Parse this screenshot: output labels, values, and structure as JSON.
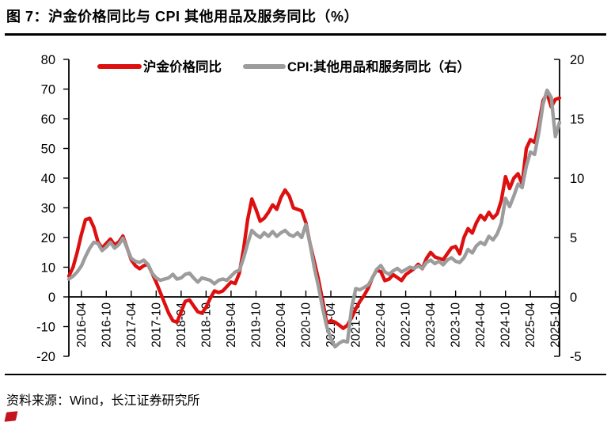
{
  "figure": {
    "title": "图 7：沪金价格同比与 CPI 其他用品及服务同比（%）",
    "source_note": "资料来源：Wind，长江证券研究所"
  },
  "colors": {
    "series_red": "#dd0f0f",
    "series_gray": "#9c9c9c",
    "axis": "#000000",
    "logo_red": "#c41420"
  },
  "chart_data": {
    "type": "line",
    "title": "沪金价格同比与 CPI 其他用品及服务同比（%）",
    "x_start": "2016-01",
    "x_end": "2025-11",
    "x_tick_labels": [
      "2016-04",
      "2016-10",
      "2017-04",
      "2017-10",
      "2018-04",
      "2018-10",
      "2019-04",
      "2019-10",
      "2020-04",
      "2020-10",
      "2021-04",
      "2021-10",
      "2022-04",
      "2022-10",
      "2023-04",
      "2023-10",
      "2024-04",
      "2024-10",
      "2025-04",
      "2025-10"
    ],
    "grid": false,
    "legend_position": "top",
    "left_axis": {
      "min": -20,
      "max": 80,
      "tick_values": [
        80,
        70,
        60,
        50,
        40,
        30,
        20,
        10,
        0,
        -10,
        -20
      ]
    },
    "right_axis": {
      "min": -5,
      "max": 20,
      "tick_values": [
        20,
        15,
        10,
        5,
        0,
        -5
      ]
    },
    "series": [
      {
        "name": "沪金价格同比",
        "axis": "left",
        "color": "#dd0f0f",
        "values": [
          7,
          10,
          15,
          21,
          26,
          26.5,
          23.5,
          18.5,
          16.5,
          18,
          19.5,
          17.5,
          18.5,
          20.5,
          16.5,
          12.5,
          10.5,
          9.5,
          10.5,
          11,
          8,
          5,
          1.5,
          -2,
          -5.5,
          -8,
          -8.5,
          -5,
          -1.5,
          -1,
          -3,
          -5,
          -5.5,
          -3.5,
          -0.5,
          2,
          1.5,
          2,
          3.5,
          5,
          4.5,
          8,
          16,
          26,
          33,
          29.5,
          25.5,
          26.5,
          28.5,
          31,
          29.5,
          33.5,
          36,
          34,
          30,
          29.5,
          29,
          25,
          18,
          12,
          6,
          -1,
          -8.8,
          -8,
          -8.5,
          -9.5,
          -10.6,
          -9.5,
          -7,
          -4,
          -1.5,
          0.5,
          3,
          6.5,
          9,
          8.5,
          5.5,
          6,
          7.5,
          6.5,
          5.5,
          7.5,
          8.5,
          9.5,
          11,
          9.5,
          13,
          15,
          13.5,
          13,
          12.5,
          14.5,
          16.5,
          17,
          14.5,
          20,
          23,
          21.5,
          25,
          27.5,
          26,
          28.5,
          26.5,
          28,
          32.5,
          40.5,
          36.5,
          40,
          41.5,
          38,
          50,
          53,
          52,
          58,
          66,
          68.5,
          64,
          66.5,
          67
        ]
      },
      {
        "name": "CPI:其他用品和服务同比（右）",
        "axis": "right",
        "color": "#9c9c9c",
        "values": [
          1.5,
          1.75,
          2.1,
          2.6,
          3.4,
          4.1,
          4.6,
          4.5,
          3.9,
          4.2,
          4.6,
          4.1,
          4.4,
          4.95,
          4.1,
          3.25,
          3,
          2.9,
          3.1,
          2.75,
          2,
          1.6,
          1.4,
          1.5,
          1.6,
          1.9,
          1.5,
          1.6,
          1.9,
          2,
          1.6,
          1.25,
          1.6,
          1.5,
          1.4,
          1.1,
          1.4,
          1.5,
          1.4,
          1.75,
          2.1,
          2.25,
          3.25,
          4.5,
          5.6,
          5.25,
          5,
          5.4,
          5.1,
          5.5,
          5.1,
          5.4,
          5.6,
          5.25,
          5.1,
          5.4,
          5,
          6.1,
          4.5,
          2.5,
          0.9,
          -0.9,
          -2.5,
          -3.5,
          -4.2,
          -3.9,
          -3.7,
          -3.8,
          -0.9,
          0.7,
          0.6,
          0.8,
          1,
          1.6,
          2.3,
          2.65,
          2.1,
          1.9,
          2.2,
          2.4,
          2.1,
          2.3,
          2.5,
          2.4,
          2.6,
          2.4,
          2.9,
          3.1,
          2.8,
          3,
          2.7,
          3.1,
          3.3,
          3,
          2.9,
          3.3,
          4,
          3.7,
          4.3,
          4.6,
          4.4,
          5.1,
          4.8,
          5.3,
          6.2,
          8.3,
          7.6,
          8.5,
          9.5,
          9.2,
          11,
          12.2,
          12,
          13.8,
          16.2,
          17.4,
          16.8,
          13.5,
          14.7
        ]
      }
    ]
  }
}
